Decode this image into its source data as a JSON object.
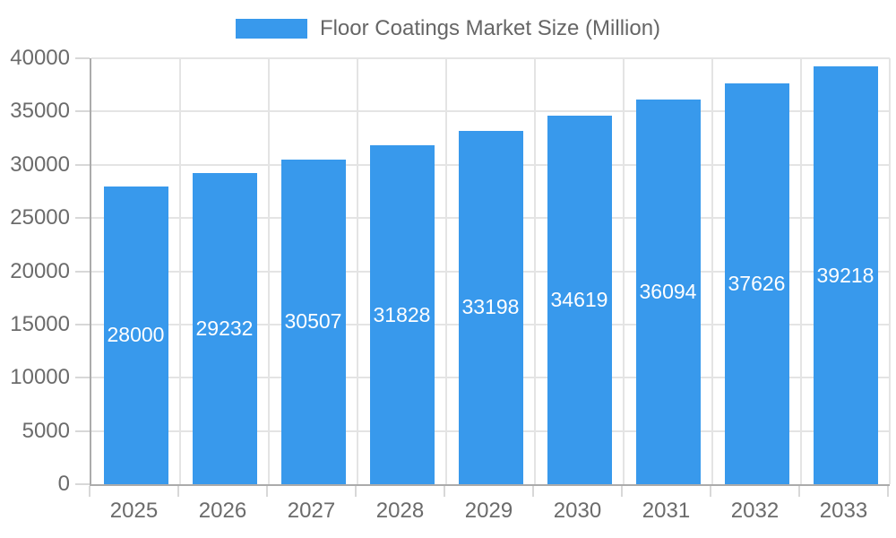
{
  "legend": {
    "label": "Floor Coatings Market Size (Million)"
  },
  "chart_data": {
    "type": "bar",
    "title": "Floor Coatings Market Size (Million)",
    "categories": [
      "2025",
      "2026",
      "2027",
      "2028",
      "2029",
      "2030",
      "2031",
      "2032",
      "2033"
    ],
    "values": [
      28000,
      29232,
      30507,
      31828,
      33198,
      34619,
      36094,
      37626,
      39218
    ],
    "bar_labels": [
      "28000",
      "29232",
      "30507",
      "31828",
      "33198",
      "34619",
      "36094",
      "37626",
      "39218"
    ],
    "xlabel": "",
    "ylabel": "",
    "ylim": [
      0,
      40000
    ],
    "y_ticks": [
      0,
      5000,
      10000,
      15000,
      20000,
      25000,
      30000,
      35000,
      40000
    ],
    "y_tick_labels": [
      "0",
      "5000",
      "10000",
      "15000",
      "20000",
      "25000",
      "30000",
      "35000",
      "40000"
    ],
    "grid": true,
    "legend_position": "top-center"
  },
  "colors": {
    "bar": "#3899ec",
    "bar_label": "#ffffff",
    "axis_text": "#6b6b6b",
    "legend_text": "#666666",
    "grid": "#e4e4e4",
    "tick": "#d8d8d8",
    "axis_border": "#ababab",
    "background": "#ffffff"
  }
}
